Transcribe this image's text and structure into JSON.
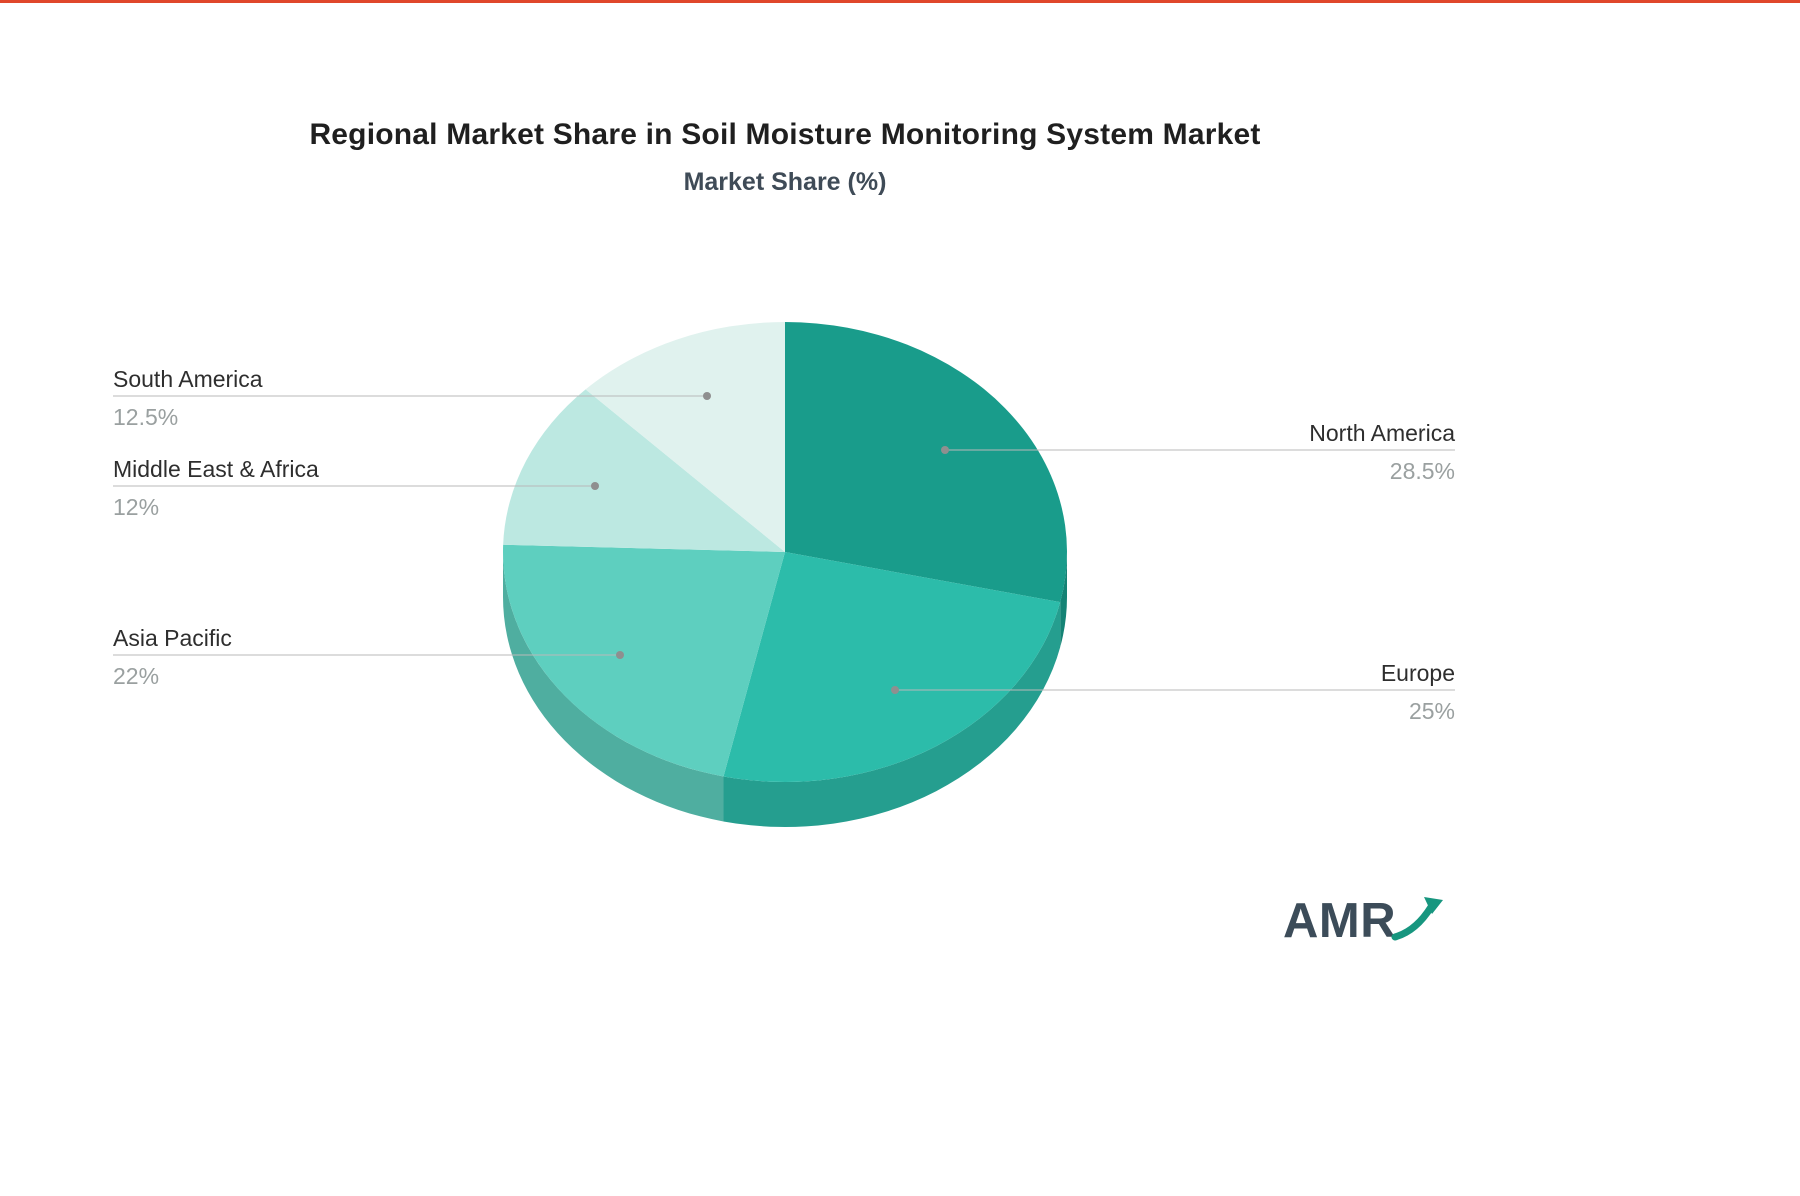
{
  "title": "Regional Market Share in Soil Moisture Monitoring System Market",
  "subtitle": "Market Share (%)",
  "colors": {
    "background": "#ffffff",
    "top_accent_bar": "#e0472b",
    "leader_line": "#b9b9b9",
    "leader_dot": "#8f8f8f",
    "label_text": "#2e2e2e",
    "value_text": "#9aa0a0",
    "subtitle_text": "#3f4b57",
    "brand_text": "#3c4c59",
    "brand_accent": "#17967f"
  },
  "brand": {
    "name": "AMR",
    "icon": "trend-up-arrow"
  },
  "chart_data": {
    "type": "pie",
    "style": "3d",
    "title": "Regional Market Share in Soil Moisture Monitoring System Market",
    "subtitle": "Market Share (%)",
    "unit": "%",
    "start_angle_deg": 0,
    "direction": "clockwise",
    "legend_position": "callout-labels",
    "slices": [
      {
        "label": "North America",
        "value": 28.5,
        "display": "28.5%",
        "color": "#199c8b",
        "callout_side": "right"
      },
      {
        "label": "Europe",
        "value": 25,
        "display": "25%",
        "color": "#2cbcaa",
        "callout_side": "right"
      },
      {
        "label": "Asia Pacific",
        "value": 22,
        "display": "22%",
        "color": "#5ecfbf",
        "callout_side": "left"
      },
      {
        "label": "Middle East & Africa",
        "value": 12,
        "display": "12%",
        "color": "#bce8e1",
        "callout_side": "left"
      },
      {
        "label": "South America",
        "value": 12.5,
        "display": "12.5%",
        "color": "#e0f2ee",
        "callout_side": "left"
      }
    ]
  }
}
